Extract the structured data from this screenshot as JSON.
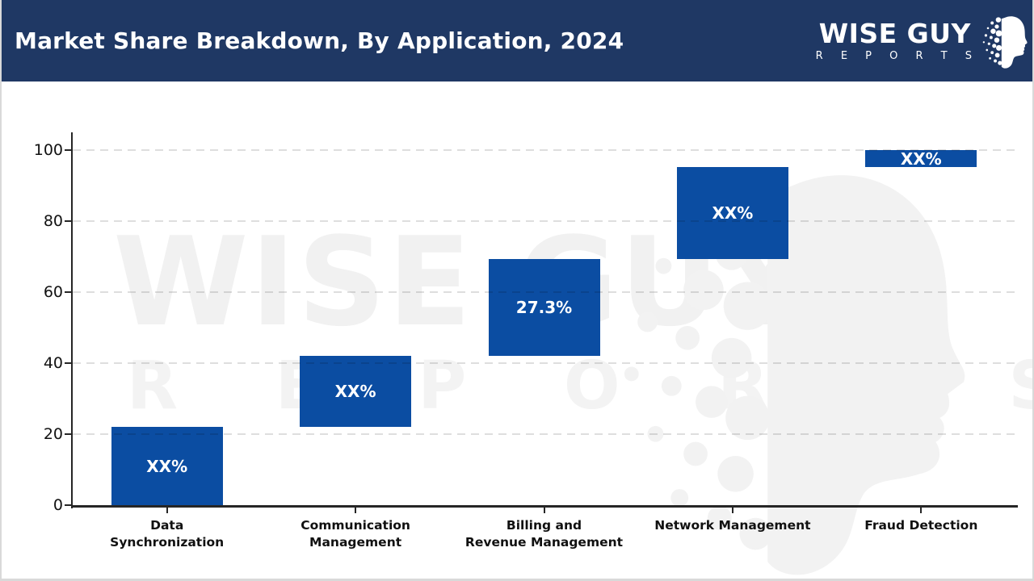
{
  "header": {
    "title": "Market Share Breakdown, By Application, 2024",
    "brand": {
      "line1": "WISE GUY",
      "line2": "R E P O R T S"
    }
  },
  "watermark": {
    "line1": "WISE GUY",
    "line2": "R E P O R T S"
  },
  "colors": {
    "header_bg": "#1f3864",
    "bar": "#0b4da2",
    "axis": "#262626",
    "gridline": "rgba(0,0,0,0.13)",
    "watermark": "#f1f1f1",
    "page_border": "#d9d9d9"
  },
  "chart_data": {
    "type": "bar",
    "subtype": "waterfall",
    "title": "Market Share Breakdown, By Application, 2024",
    "categories": [
      "Data Synchronization",
      "Communication Management",
      "Billing and Revenue Management",
      "Network Management",
      "Fraud Detection"
    ],
    "categories_display": [
      [
        "Data",
        "Synchronization"
      ],
      [
        "Communication",
        "Management"
      ],
      [
        "Billing and",
        "Revenue Management"
      ],
      [
        "Network Management"
      ],
      [
        "Fraud Detection"
      ]
    ],
    "segments": [
      {
        "category": "Data Synchronization",
        "start": 0,
        "end": 22,
        "label": "XX%"
      },
      {
        "category": "Communication Management",
        "start": 22,
        "end": 42,
        "label": "XX%"
      },
      {
        "category": "Billing and Revenue Management",
        "start": 42,
        "end": 69.3,
        "label": "27.3%"
      },
      {
        "category": "Network Management",
        "start": 69.3,
        "end": 95.2,
        "label": "XX%"
      },
      {
        "category": "Fraud Detection",
        "start": 95.2,
        "end": 100,
        "label": "XX%"
      }
    ],
    "values": [
      22,
      20,
      27.3,
      25.9,
      4.8
    ],
    "bar_labels": [
      "XX%",
      "XX%",
      "27.3%",
      "XX%",
      "XX%"
    ],
    "ylim": [
      0,
      100
    ],
    "yticks": [
      0,
      20,
      40,
      60,
      80,
      100
    ],
    "xlabel": "",
    "ylabel": "",
    "grid": "horizontal-dashed",
    "legend": "none",
    "bar_color": "#0b4da2"
  }
}
